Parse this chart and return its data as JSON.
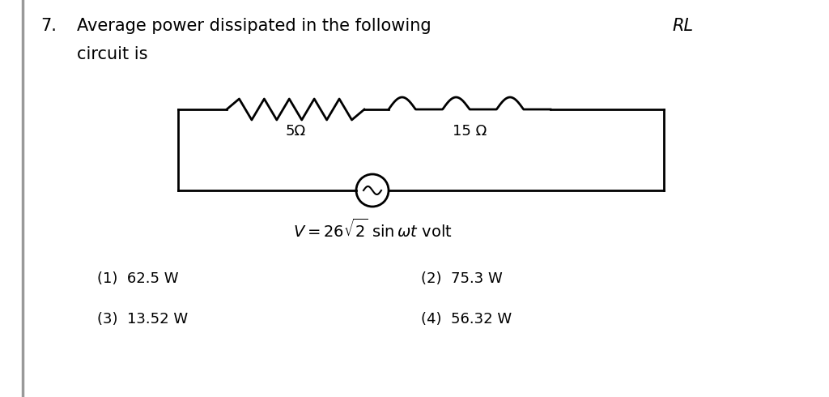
{
  "title_number": "7.",
  "title_text": "Average power dissipated in the following ",
  "title_italic": "RL",
  "title_line2": "circuit is",
  "resistor_label": "5Ω",
  "inductor_label": "15 Ω",
  "options": [
    "(1)  62.5 W",
    "(2)  75.3 W",
    "(3)  13.52 W",
    "(4)  56.32 W"
  ],
  "bg_color": "#ffffff",
  "text_color": "#000000",
  "circuit_color": "#000000",
  "fig_width": 10.24,
  "fig_height": 4.9,
  "font_size_title": 15,
  "font_size_label": 13,
  "font_size_option": 13
}
